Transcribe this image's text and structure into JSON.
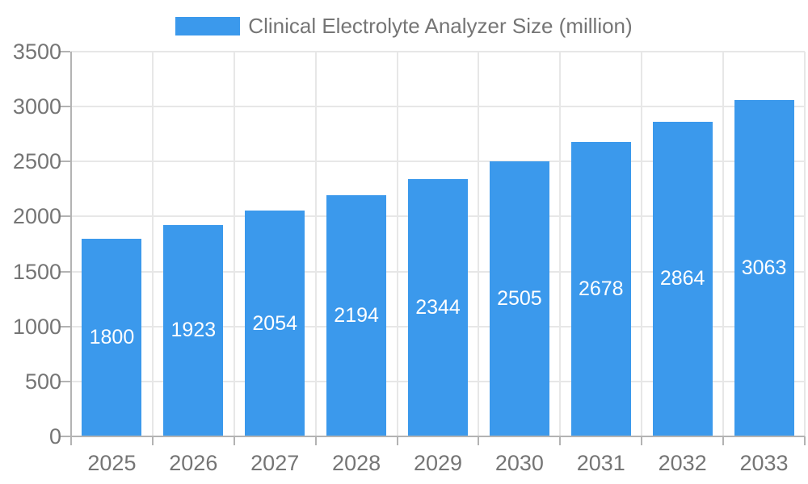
{
  "chart_data": {
    "type": "bar",
    "title": "Clinical Electrolyte Analyzer Size (million)",
    "categories": [
      "2025",
      "2026",
      "2027",
      "2028",
      "2029",
      "2030",
      "2031",
      "2032",
      "2033"
    ],
    "series": [
      {
        "name": "Clinical Electrolyte Analyzer Size (million)",
        "values": [
          1800,
          1923,
          2054,
          2194,
          2344,
          2505,
          2678,
          2864,
          3063
        ],
        "color": "#3B99EC"
      }
    ],
    "xlabel": "",
    "ylabel": "",
    "ylim": [
      0,
      3500
    ],
    "yticks": [
      0,
      500,
      1000,
      1500,
      2000,
      2500,
      3000,
      3500
    ],
    "grid": true,
    "legend_position": "top",
    "value_labels": "inside-center",
    "value_label_color": "#FFFFFF"
  },
  "colors": {
    "bar": "#3B99EC",
    "background": "#FFFFFF",
    "axis_line": "#B3B3B3",
    "gridline": "#E7E7E7",
    "tick_label": "#757575",
    "legend_text": "#757575"
  }
}
